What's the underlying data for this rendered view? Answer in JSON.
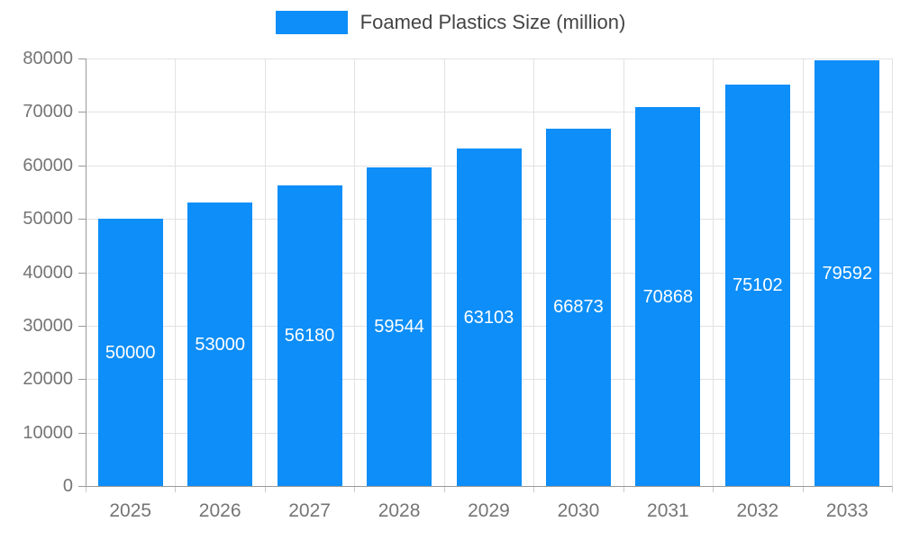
{
  "legend": {
    "label": "Foamed Plastics Size (million)"
  },
  "chart_data": {
    "type": "bar",
    "title": "Foamed Plastics Size (million)",
    "categories": [
      "2025",
      "2026",
      "2027",
      "2028",
      "2029",
      "2030",
      "2031",
      "2032",
      "2033"
    ],
    "values": [
      50000,
      53000,
      56180,
      59544,
      63103,
      66873,
      70868,
      75102,
      79592
    ],
    "series": [
      {
        "name": "Foamed Plastics Size (million)",
        "values": [
          50000,
          53000,
          56180,
          59544,
          63103,
          66873,
          70868,
          75102,
          79592
        ]
      }
    ],
    "xlabel": "",
    "ylabel": "",
    "ylim": [
      0,
      80000
    ],
    "ytick_step": 10000,
    "ytick_labels": [
      "0",
      "10000",
      "20000",
      "30000",
      "40000",
      "50000",
      "60000",
      "70000",
      "80000"
    ],
    "bar_labels": [
      "50000",
      "53000",
      "56180",
      "59544",
      "63103",
      "66873",
      "70868",
      "75102",
      "79592"
    ],
    "grid": true,
    "legend_position": "top"
  },
  "colors": {
    "bar": "#0d8ef8",
    "bar_label_text": "#ffffff",
    "axis_line": "#9a9a9a",
    "gridline": "#e2e2e2",
    "tick_text": "#757575",
    "legend_text": "#444444",
    "background": "#ffffff"
  }
}
